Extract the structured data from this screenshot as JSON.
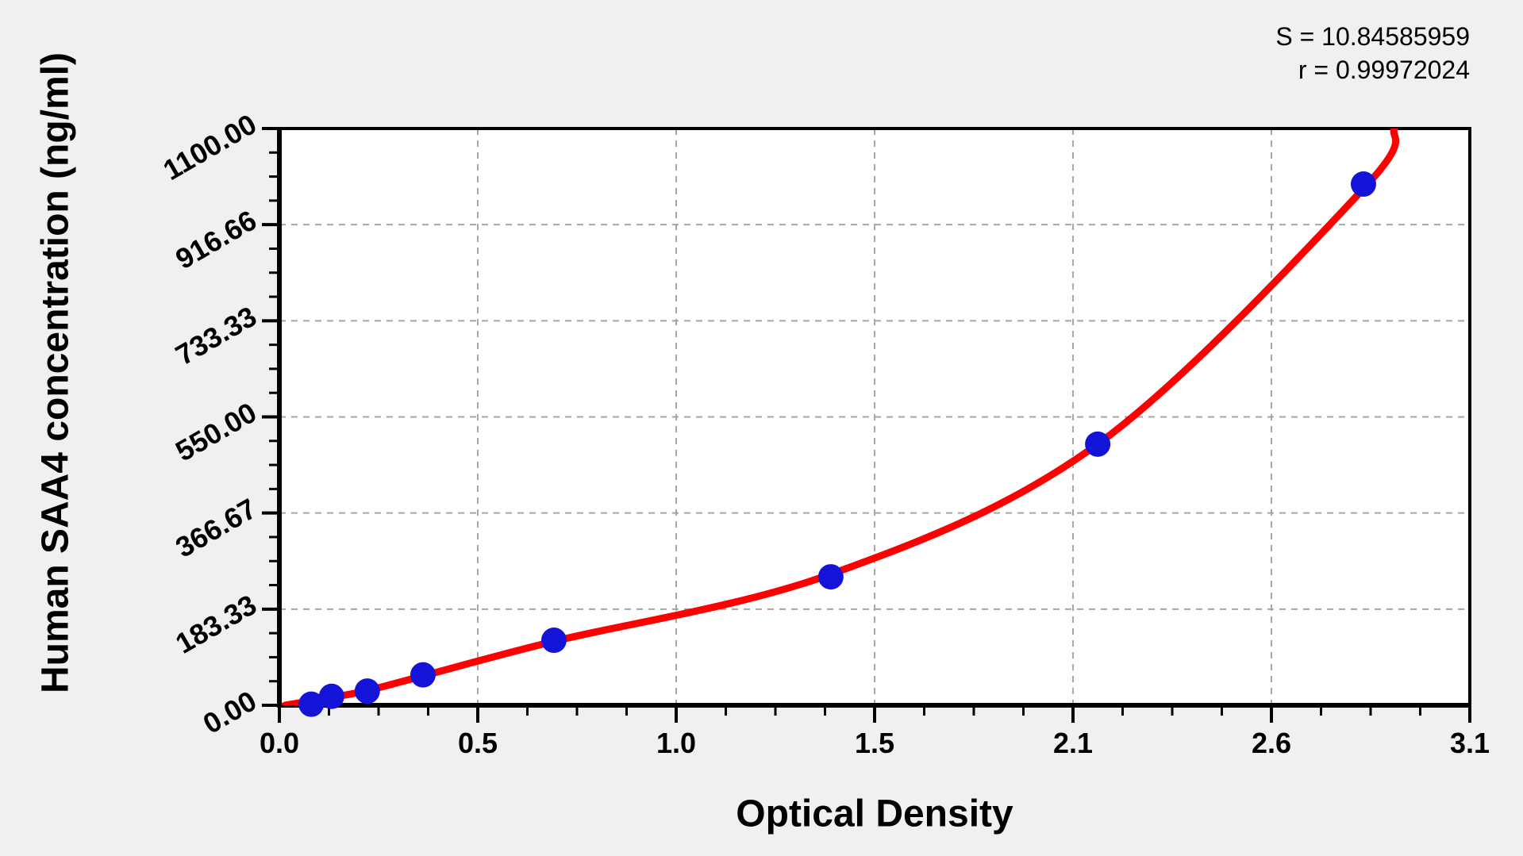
{
  "annotations": {
    "s_label": "S = 10.84585959",
    "r_label": "r = 0.99972024"
  },
  "chart_data": {
    "type": "scatter",
    "title": "",
    "xlabel": "Optical Density",
    "ylabel": "Human SAA4 concentration (ng/ml)",
    "x_range": [
      0,
      3.1
    ],
    "y_range": [
      0,
      1100
    ],
    "x_tick_labels": [
      "0.0",
      "0.5",
      "1.0",
      "1.5",
      "2.1",
      "2.6",
      "3.1"
    ],
    "y_tick_labels": [
      "0.00",
      "183.33",
      "366.67",
      "550.00",
      "733.33",
      "916.66",
      "1100.00"
    ],
    "x_minor_ticks_per_division": 3,
    "y_minor_ticks_per_division": 3,
    "grid": "dashed",
    "legend": "none",
    "stats": {
      "S": "10.84585959",
      "r": "0.99972024"
    },
    "point_color": "#1414d8",
    "curve_color": "#ff0000",
    "grid_color": "#a6a6a6",
    "plot_bg_color": "#ffffff",
    "figure_bg_color": "#f0f0f0",
    "points_od_vs_conc": [
      [
        0.083,
        2
      ],
      [
        0.136,
        17
      ],
      [
        0.229,
        27
      ],
      [
        0.374,
        58
      ],
      [
        0.715,
        124
      ],
      [
        1.436,
        245
      ],
      [
        2.131,
        498
      ],
      [
        2.823,
        994
      ]
    ],
    "fit_curve": [
      [
        0.015,
        0
      ],
      [
        0.136,
        15
      ],
      [
        0.229,
        28
      ],
      [
        0.374,
        56
      ],
      [
        0.715,
        122
      ],
      [
        1.436,
        250
      ],
      [
        2.131,
        498
      ],
      [
        2.823,
        985
      ],
      [
        2.904,
        1100
      ]
    ]
  }
}
